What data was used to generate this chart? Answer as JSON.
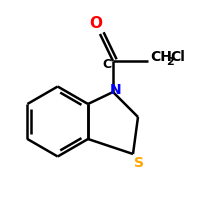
{
  "bg_color": "#ffffff",
  "bond_color": "#000000",
  "atom_colors": {
    "O": "#ff0000",
    "N": "#0000ff",
    "S": "#ffa500",
    "C": "#000000",
    "Cl": "#000000"
  },
  "line_width": 1.8,
  "font_size": 9,
  "figsize": [
    2.17,
    2.05
  ],
  "dpi": 100
}
